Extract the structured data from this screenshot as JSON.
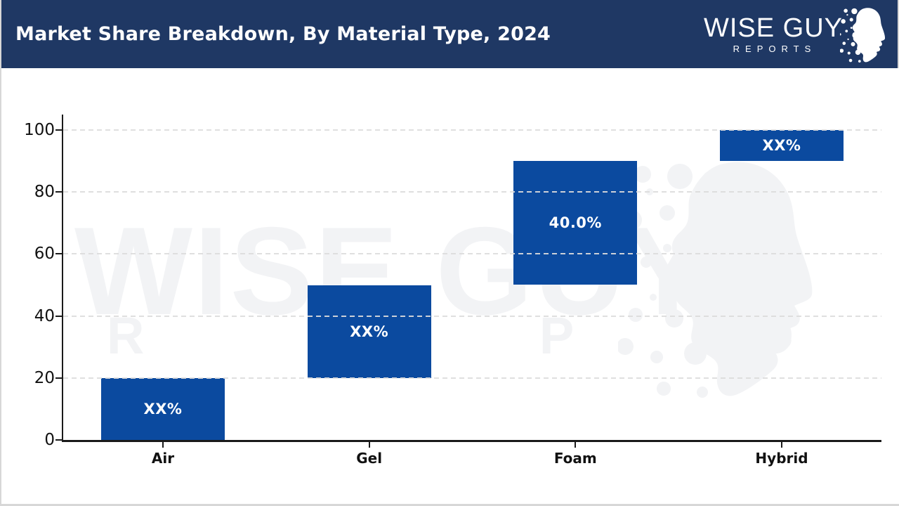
{
  "header": {
    "title": "Market Share Breakdown, By Material Type, 2024",
    "background_color": "#1f3864",
    "logo": {
      "line1": "WISE GUY",
      "line2": "REPORTS"
    }
  },
  "watermark": {
    "line1": "WISE GUY",
    "line2": "R E P O R T S",
    "color": "#f2f3f5"
  },
  "chart_data": {
    "type": "bar",
    "subtype": "waterfall",
    "title": "Market Share Breakdown, By Material Type, 2024",
    "categories": [
      "Air",
      "Gel",
      "Foam",
      "Hybrid"
    ],
    "segments": [
      {
        "category": "Air",
        "start": 0,
        "end": 20,
        "label": "XX%"
      },
      {
        "category": "Gel",
        "start": 20,
        "end": 50,
        "label": "XX%"
      },
      {
        "category": "Foam",
        "start": 50,
        "end": 90,
        "label": "40.0%"
      },
      {
        "category": "Hybrid",
        "start": 90,
        "end": 100,
        "label": "XX%"
      }
    ],
    "yticks": [
      0,
      20,
      40,
      60,
      80,
      100
    ],
    "ylim": [
      0,
      105
    ],
    "xlabel": "",
    "ylabel": "",
    "grid": "horizontal-dashed",
    "grid_color": "#dcdcdc",
    "bar_color": "#0b4a9f",
    "bar_label_color": "#ffffff",
    "axis_color": "#1a1a1a",
    "legend": "none"
  }
}
